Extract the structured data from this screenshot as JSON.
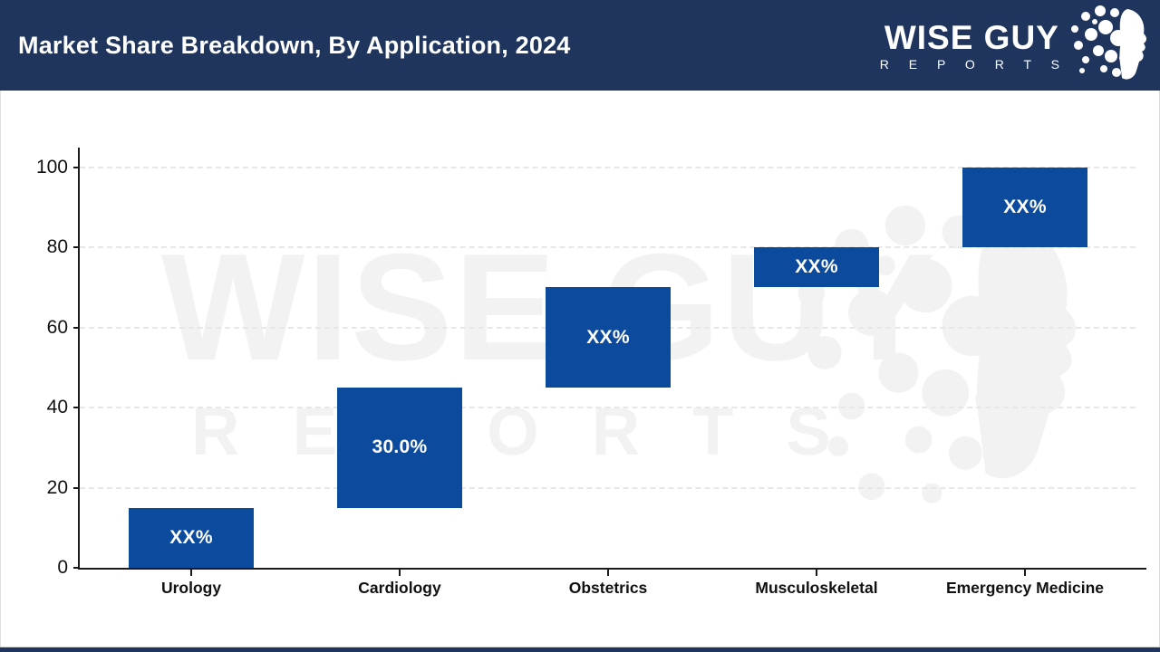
{
  "header": {
    "title": "Market Share Breakdown, By Application, 2024",
    "bg_color": "#1f355e",
    "logo": {
      "line1": "WISE GUY",
      "line2": "R E P O R T S"
    }
  },
  "watermark": {
    "line1": "WISE GUY",
    "line2": "REPORTS"
  },
  "chart_data": {
    "type": "bar",
    "subtype": "floating-waterfall",
    "title": "Market Share Breakdown, By Application, 2024",
    "categories": [
      "Urology",
      "Cardiology",
      "Obstetrics",
      "Musculoskeletal",
      "Emergency Medicine"
    ],
    "bars": [
      {
        "category": "Urology",
        "start": 0,
        "end": 15,
        "value": 15,
        "label": "XX%"
      },
      {
        "category": "Cardiology",
        "start": 15,
        "end": 45,
        "value": 30,
        "label": "30.0%"
      },
      {
        "category": "Obstetrics",
        "start": 45,
        "end": 70,
        "value": 25,
        "label": "XX%"
      },
      {
        "category": "Musculoskeletal",
        "start": 70,
        "end": 80,
        "value": 10,
        "label": "XX%"
      },
      {
        "category": "Emergency Medicine",
        "start": 80,
        "end": 100,
        "value": 20,
        "label": "XX%"
      }
    ],
    "yticks": [
      0,
      20,
      40,
      60,
      80,
      100
    ],
    "ylim": [
      0,
      105
    ],
    "xlabel": "",
    "ylabel": "",
    "grid": "horizontal-dashed",
    "legend": "none",
    "bar_color": "#0c4a9e",
    "label_color": "#ffffff"
  },
  "footer": {
    "bg_color": "#1f355e"
  }
}
